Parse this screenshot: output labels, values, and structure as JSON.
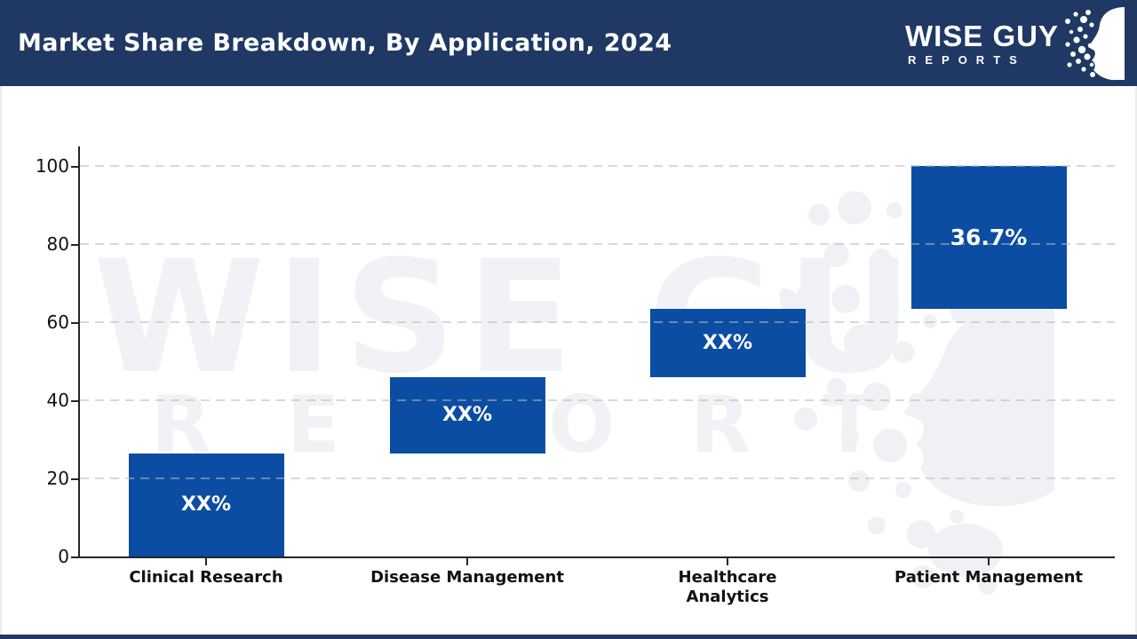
{
  "header": {
    "title": "Market Share Breakdown, By Application, 2024",
    "brand": {
      "name": "WISE GUY",
      "tagline": "REPORTS"
    },
    "background_color": "#1f3864"
  },
  "watermark": {
    "name": "WISE GUY",
    "tagline": "REPORTS"
  },
  "chart_data": {
    "type": "bar",
    "subtype": "floating-waterfall",
    "title": "Market Share Breakdown, By Application, 2024",
    "categories": [
      "Clinical Research",
      "Disease Management",
      "Healthcare\nAnalytics",
      "Patient Management"
    ],
    "series": [
      {
        "name": "Market share (%)",
        "segments": [
          {
            "category": "Clinical Research",
            "start": 0,
            "end": 26.3,
            "label": "XX%",
            "emphasis": false
          },
          {
            "category": "Disease Management",
            "start": 26.3,
            "end": 45.9,
            "label": "XX%",
            "emphasis": false
          },
          {
            "category": "Healthcare Analytics",
            "start": 45.9,
            "end": 63.3,
            "label": "XX%",
            "emphasis": false
          },
          {
            "category": "Patient Management",
            "start": 63.3,
            "end": 100,
            "label": "36.7%",
            "emphasis": true
          }
        ]
      }
    ],
    "ylim": [
      0,
      100
    ],
    "yticks": [
      0,
      20,
      40,
      60,
      80,
      100
    ],
    "grid": "horizontal-dashed",
    "legend": "none",
    "bar_color": "#0b4da2",
    "bar_label_color": "#ffffff",
    "axis_color": "#262626"
  },
  "footer": {
    "accent_color": "#1f3864"
  }
}
